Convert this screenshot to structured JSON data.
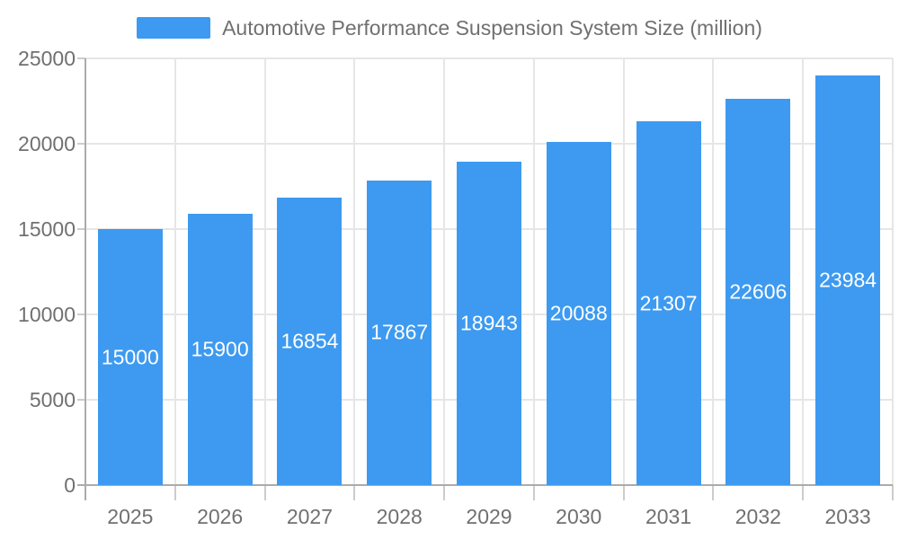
{
  "legend": {
    "label": "Automotive Performance Suspension System Size (million)"
  },
  "chart_data": {
    "type": "bar",
    "title": "Automotive Performance Suspension System Size (million)",
    "categories": [
      "2025",
      "2026",
      "2027",
      "2028",
      "2029",
      "2030",
      "2031",
      "2032",
      "2033"
    ],
    "values": [
      15000,
      15900,
      16854,
      17867,
      18943,
      20088,
      21307,
      22606,
      23984
    ],
    "xlabel": "",
    "ylabel": "",
    "ylim": [
      0,
      25000
    ],
    "yticks": [
      0,
      5000,
      10000,
      15000,
      20000,
      25000
    ],
    "grid": true,
    "legend_position": "top",
    "colors": {
      "bar": "#3d9af0",
      "value_label": "#ffffff",
      "axis_text": "#707070",
      "grid_line": "#e6e6e6",
      "axis_line": "#ababab",
      "tick_mark": "#cccccc"
    }
  }
}
